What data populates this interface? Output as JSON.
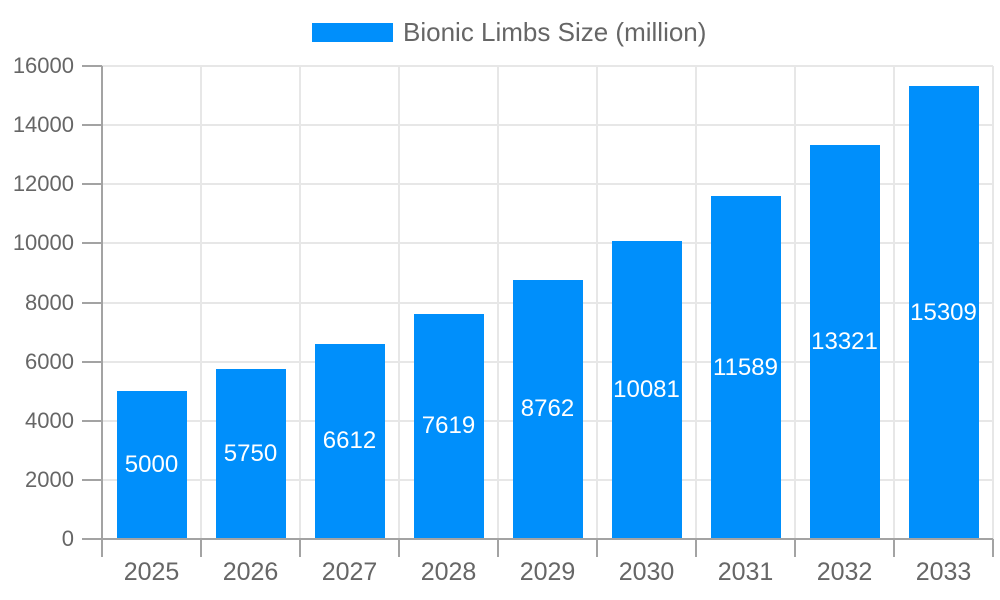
{
  "chart_data": {
    "type": "bar",
    "title": "",
    "legend": "Bionic Limbs Size (million)",
    "legend_position": "top",
    "categories": [
      "2025",
      "2026",
      "2027",
      "2028",
      "2029",
      "2030",
      "2031",
      "2032",
      "2033"
    ],
    "values": [
      5000,
      5750,
      6612,
      7619,
      8762,
      10081,
      11589,
      13321,
      15309
    ],
    "xlabel": "",
    "ylabel": "",
    "ylim": [
      0,
      16000
    ],
    "ytick_step": 2000,
    "ytick_labels": [
      "0",
      "2000",
      "4000",
      "6000",
      "8000",
      "10000",
      "12000",
      "14000",
      "16000"
    ],
    "grid": true,
    "colors": {
      "bar": "#008FFB",
      "grid": "#e7e7e7",
      "axis": "#a3a3a3",
      "tick_text": "#666666",
      "bar_label_text": "#ffffff",
      "background": "#ffffff"
    }
  }
}
